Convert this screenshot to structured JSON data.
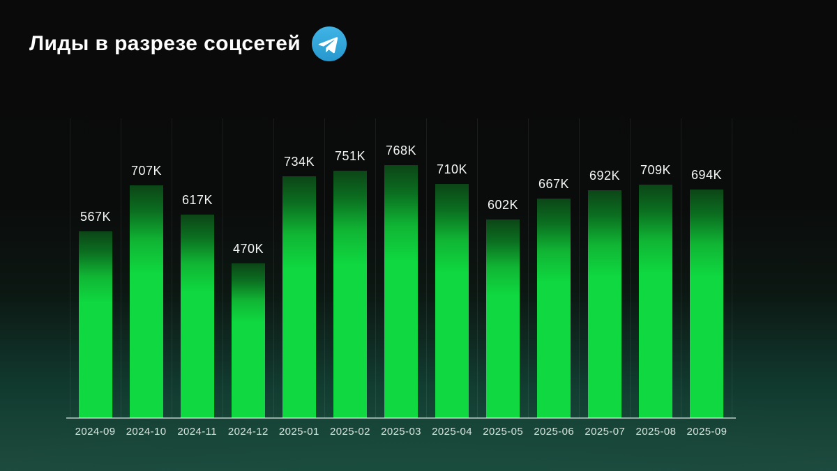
{
  "header": {
    "title": "Лиды в разрезе соцсетей",
    "icon": "telegram-icon"
  },
  "colors": {
    "background_top": "#0a0a0b",
    "background_bottom": "#1d4b3e",
    "bar_bright": "#0fd840",
    "bar_dark": "#0c4517",
    "telegram_blue": "#34aadf",
    "value_label_text": "#f5f7f6",
    "axis_text": "#d7e5df",
    "baseline": "rgba(255,255,255,0.55)",
    "gridline": "rgba(255,255,255,0.07)"
  },
  "chart_data": {
    "type": "bar",
    "title": "Лиды в разрезе соцсетей",
    "categories": [
      "2024-09",
      "2024-10",
      "2024-11",
      "2024-12",
      "2025-01",
      "2025-02",
      "2025-03",
      "2025-04",
      "2025-05",
      "2025-06",
      "2025-07",
      "2025-08",
      "2025-09"
    ],
    "values": [
      567,
      707,
      617,
      470,
      734,
      751,
      768,
      710,
      602,
      667,
      692,
      709,
      694
    ],
    "value_labels": [
      "567K",
      "707K",
      "617K",
      "470K",
      "734K",
      "751K",
      "768K",
      "710K",
      "602K",
      "667K",
      "692K",
      "709K",
      "694K"
    ],
    "unit": "K",
    "xlabel": "",
    "ylabel": "",
    "ylim": [
      0,
      768
    ],
    "grid": "vertical-column-separators-only",
    "legend": "none",
    "bar_color": "green-gradient",
    "data_labels_position": "above-bars"
  }
}
